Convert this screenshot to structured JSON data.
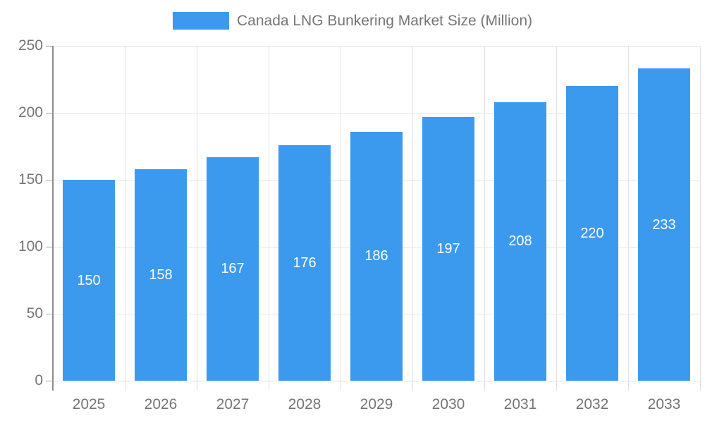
{
  "chart_data": {
    "type": "bar",
    "title": "Canada LNG Bunkering Market Size (Million)",
    "legend": {
      "label": "Canada LNG Bunkering Market Size (Million)",
      "position": "top"
    },
    "categories": [
      "2025",
      "2026",
      "2027",
      "2028",
      "2029",
      "2030",
      "2031",
      "2032",
      "2033"
    ],
    "values": [
      150,
      158,
      167,
      176,
      186,
      197,
      208,
      220,
      233
    ],
    "value_labels": [
      "150",
      "158",
      "167",
      "176",
      "186",
      "197",
      "208",
      "220",
      "233"
    ],
    "xlabel": "",
    "ylabel": "",
    "ylim": [
      0,
      250
    ],
    "yticks": [
      0,
      50,
      100,
      150,
      200,
      250
    ],
    "ytick_labels": [
      "0",
      "50",
      "100",
      "150",
      "200",
      "250"
    ],
    "grid": true,
    "colors": {
      "bar": "#3b9aee",
      "bar_value_text": "#ffffff",
      "axis_text": "#757575",
      "legend_text": "#757575",
      "grid_line": "#e2e2e2",
      "axis_line": "#8c8c8c",
      "background": "#ffffff"
    }
  }
}
